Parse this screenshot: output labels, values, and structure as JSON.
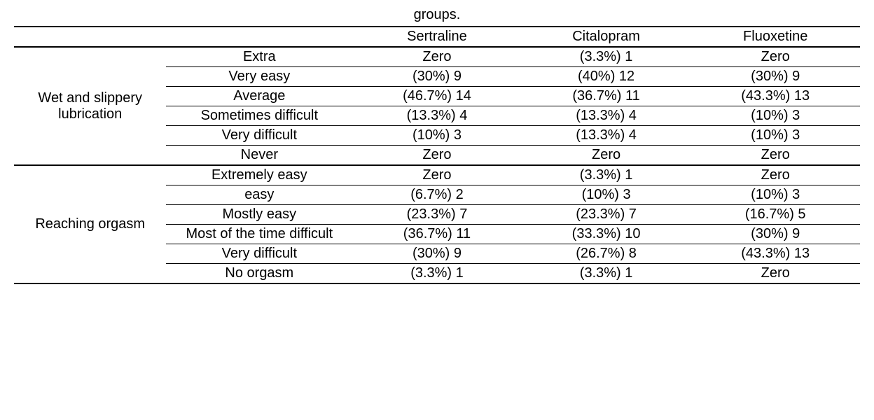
{
  "caption": "groups.",
  "columns": [
    "Sertraline",
    "Citalopram",
    "Fluoxetine"
  ],
  "sections": [
    {
      "group": "Wet and slippery lubrication",
      "rows": [
        {
          "level": "Extra",
          "values": [
            "Zero",
            "(3.3%) 1",
            "Zero"
          ]
        },
        {
          "level": "Very easy",
          "values": [
            "(30%) 9",
            "(40%) 12",
            "(30%) 9"
          ]
        },
        {
          "level": "Average",
          "values": [
            "(46.7%) 14",
            "(36.7%) 11",
            "(43.3%) 13"
          ]
        },
        {
          "level": "Sometimes difficult",
          "values": [
            "(13.3%) 4",
            "(13.3%) 4",
            "(10%) 3"
          ]
        },
        {
          "level": "Very difficult",
          "values": [
            "(10%) 3",
            "(13.3%) 4",
            "(10%) 3"
          ]
        },
        {
          "level": "Never",
          "values": [
            "Zero",
            "Zero",
            "Zero"
          ]
        }
      ]
    },
    {
      "group": "Reaching orgasm",
      "rows": [
        {
          "level": "Extremely easy",
          "values": [
            "Zero",
            "(3.3%) 1",
            "Zero"
          ]
        },
        {
          "level": "easy",
          "values": [
            "(6.7%) 2",
            "(10%) 3",
            "(10%) 3"
          ]
        },
        {
          "level": "Mostly easy",
          "values": [
            "(23.3%) 7",
            "(23.3%) 7",
            "(16.7%) 5"
          ]
        },
        {
          "level": "Most of the time difficult",
          "values": [
            "(36.7%) 11",
            "(33.3%) 10",
            "(30%) 9"
          ]
        },
        {
          "level": "Very difficult",
          "values": [
            "(30%) 9",
            "(26.7%) 8",
            "(43.3%) 13"
          ]
        },
        {
          "level": "No orgasm",
          "values": [
            "(3.3%) 1",
            "(3.3%) 1",
            "Zero"
          ]
        }
      ]
    }
  ]
}
